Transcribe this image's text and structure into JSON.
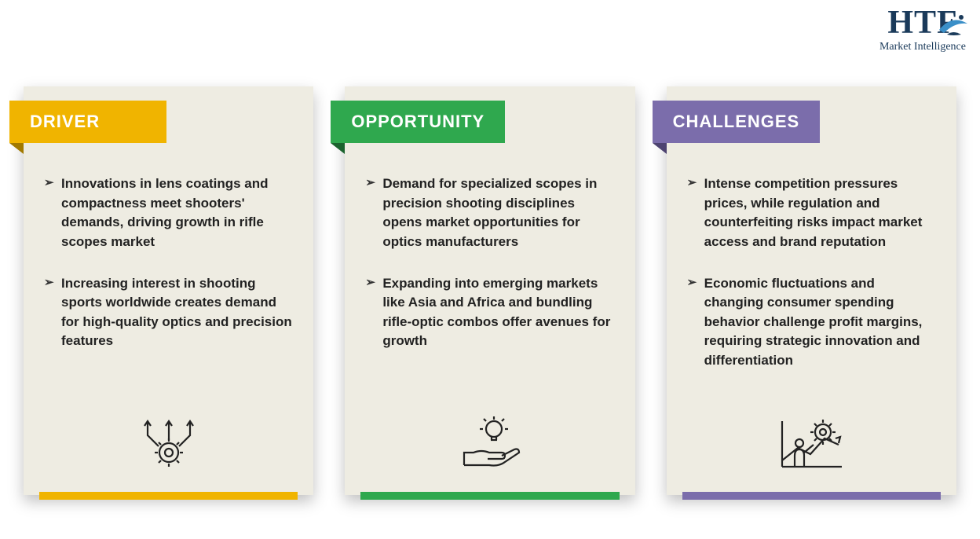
{
  "logo": {
    "main": "HTF",
    "sub": "Market Intelligence"
  },
  "colors": {
    "card_bg": "#eeece2",
    "text": "#222222"
  },
  "cards": [
    {
      "title": "DRIVER",
      "color": "#f0b400",
      "fold_color": "#b38600",
      "points": [
        "Innovations in lens coatings and compactness meet shooters' demands, driving growth in rifle scopes market",
        "Increasing interest in shooting sports worldwide creates demand for high-quality optics and precision features"
      ],
      "icon": "gear-arrows"
    },
    {
      "title": "OPPORTUNITY",
      "color": "#2fa84e",
      "fold_color": "#1e6e33",
      "points": [
        "Demand for specialized scopes in precision shooting disciplines opens market opportunities for optics manufacturers",
        "Expanding into emerging markets like Asia and Africa and bundling rifle-optic combos offer avenues for growth"
      ],
      "icon": "hand-bulb"
    },
    {
      "title": "CHALLENGES",
      "color": "#7b6dab",
      "fold_color": "#564a7d",
      "points": [
        "Intense competition pressures prices, while regulation and counterfeiting risks impact market access and brand reputation",
        "Economic fluctuations and changing consumer spending behavior challenge profit margins, requiring strategic innovation and differentiation"
      ],
      "icon": "person-gear-chart"
    }
  ]
}
